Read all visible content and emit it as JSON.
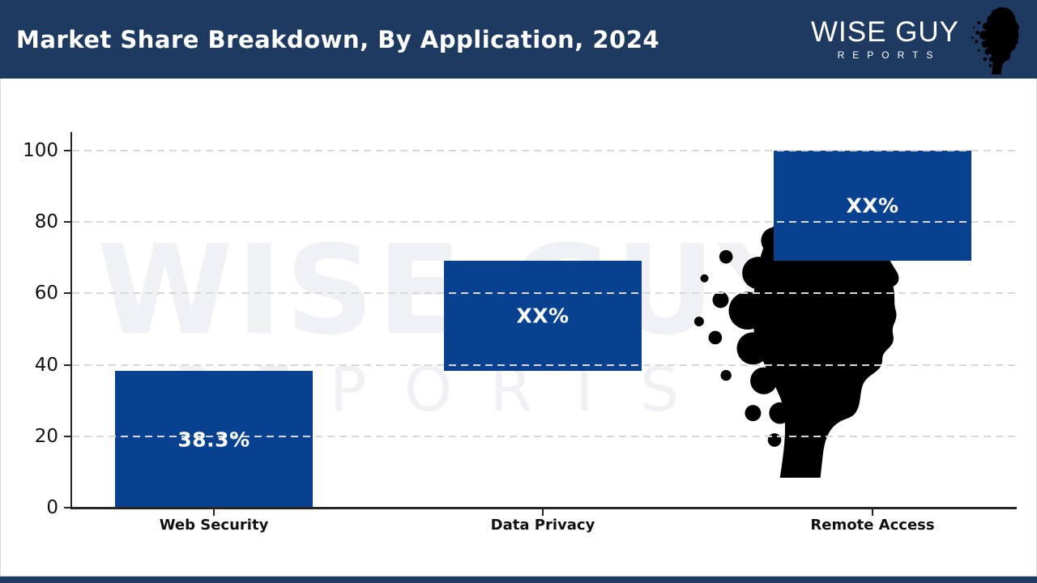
{
  "header": {
    "title": "Market Share Breakdown, By Application, 2024",
    "logo": {
      "name_line": "WISE GUY",
      "sub_line": "REPORTS"
    }
  },
  "watermark": {
    "line1": "WISE GUY",
    "line2": "REPORTS"
  },
  "chart_data": {
    "type": "bar",
    "subtype": "waterfall",
    "title": "Market Share Breakdown, By Application, 2024",
    "categories": [
      "Web Security",
      "Data Privacy",
      "Remote Access"
    ],
    "segments": [
      {
        "category": "Web Security",
        "start": 0,
        "end": 38.3,
        "label": "38.3%"
      },
      {
        "category": "Data Privacy",
        "start": 38.3,
        "end": 69.2,
        "label": "XX%"
      },
      {
        "category": "Remote Access",
        "start": 69.2,
        "end": 100,
        "label": "XX%"
      }
    ],
    "ylim": [
      0,
      100
    ],
    "yticks": [
      0,
      20,
      40,
      60,
      80,
      100
    ],
    "grid": "horizontal-dashed",
    "legend": "none"
  },
  "colors": {
    "header_bg": "#1f3a60",
    "bar_fill": "#07418f",
    "grid_line": "#d8d8d8",
    "axis": "#262626",
    "tick_label": "#111111",
    "bar_label": "#ffffff",
    "watermark": "#eff1f4",
    "footer_bar": "#1f3a60"
  }
}
